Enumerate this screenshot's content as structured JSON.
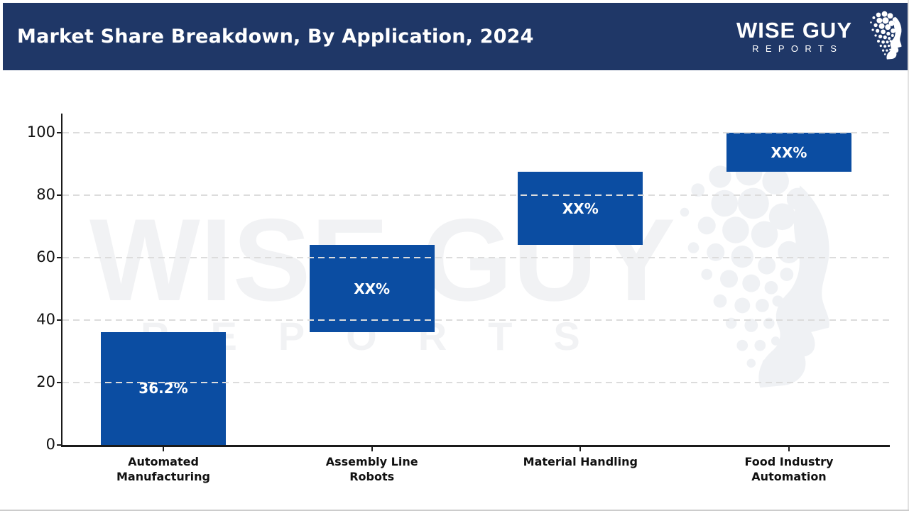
{
  "page": {
    "background": "#ffffff",
    "border_color": "#cccccc"
  },
  "header": {
    "title": "Market Share Breakdown, By Application, 2024",
    "bg_color": "#1f3767",
    "logo_line1": "WISE GUY",
    "logo_line2": "REPORTS"
  },
  "watermark": {
    "line1": "WISE GUY",
    "line2": "REPORTS"
  },
  "chart_data": {
    "type": "bar",
    "subtype": "waterfall",
    "title": "Market Share Breakdown, By Application, 2024",
    "categories": [
      [
        "Automated",
        "Manufacturing"
      ],
      [
        "Assembly Line",
        "Robots"
      ],
      [
        "Material Handling"
      ],
      [
        "Food Industry",
        "Automation"
      ]
    ],
    "series": [
      {
        "name": "Market share (%)",
        "segments": [
          {
            "start": 0,
            "end": 36.2,
            "label": "36.2%"
          },
          {
            "start": 36.2,
            "end": 64,
            "label": "XX%"
          },
          {
            "start": 64,
            "end": 87.4,
            "label": "XX%"
          },
          {
            "start": 87.4,
            "end": 100,
            "label": "XX%"
          }
        ]
      }
    ],
    "yticks": [
      0,
      20,
      40,
      60,
      80,
      100
    ],
    "ylim": [
      0,
      106
    ],
    "xlabel": "",
    "ylabel": "",
    "grid": "horizontal-dashed",
    "legend": "none",
    "bar_color": "#0b4da2",
    "bar_label_color": "#ffffff",
    "axis_color": "#1a1a1a",
    "grid_color": "#dcdcdc"
  }
}
